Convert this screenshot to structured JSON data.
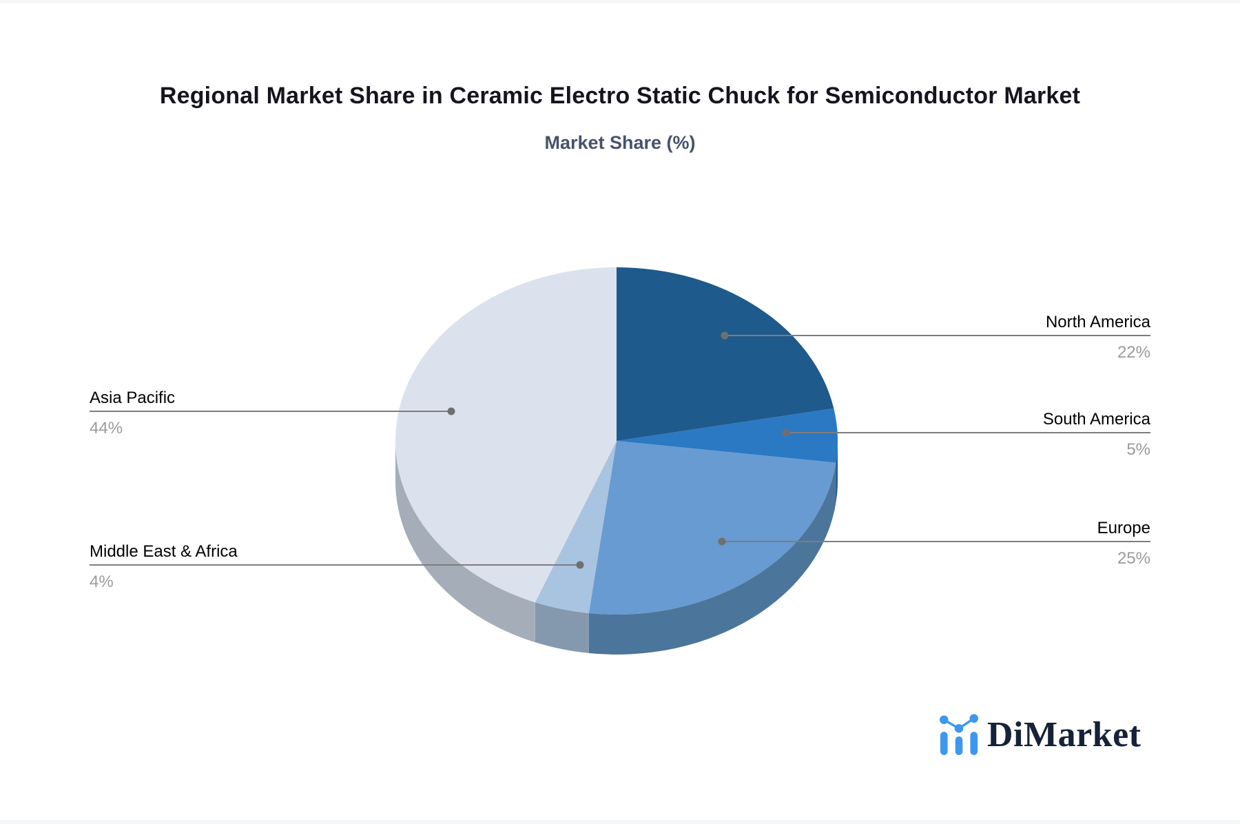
{
  "header": {
    "title": "Regional Market Share in Ceramic Electro Static Chuck for Semiconductor Market",
    "subtitle": "Market Share (%)"
  },
  "chart_data": {
    "type": "pie",
    "style": "3d-pie-with-callouts",
    "title": "Regional Market Share in Ceramic Electro Static Chuck for Semiconductor Market",
    "subtitle": "Market Share (%)",
    "unit": "%",
    "start_angle_deg": 0,
    "direction": "clockwise",
    "legend_position": "callout-labels",
    "categories": [
      "North America",
      "South America",
      "Europe",
      "Middle East & Africa",
      "Asia Pacific"
    ],
    "values": [
      22,
      5,
      25,
      4,
      44
    ],
    "segments": [
      {
        "label": "North America",
        "value": 22,
        "display": "22%",
        "callout_side": "right",
        "color": "#1e5a8c",
        "side_color": "#16466e"
      },
      {
        "label": "South America",
        "value": 5,
        "display": "5%",
        "callout_side": "right",
        "color": "#2b79c2",
        "side_color": "#205a91"
      },
      {
        "label": "Europe",
        "value": 25,
        "display": "25%",
        "callout_side": "right",
        "color": "#679bd2",
        "side_color": "#4c759b"
      },
      {
        "label": "Middle East & Africa",
        "value": 4,
        "display": "4%",
        "callout_side": "left",
        "color": "#a9c4e1",
        "side_color": "#8499ae"
      },
      {
        "label": "Asia Pacific",
        "value": 44,
        "display": "44%",
        "callout_side": "left",
        "color": "#dbe2ed",
        "side_color": "#a5adb8"
      }
    ],
    "callout_line_color": "#7d7d7d",
    "callout_dot_color": "#6f6f6f"
  },
  "branding": {
    "name": "DiMarket",
    "icon": "bar-line-chart-icon",
    "accent": "#3e97f1",
    "text_color": "#152238"
  }
}
